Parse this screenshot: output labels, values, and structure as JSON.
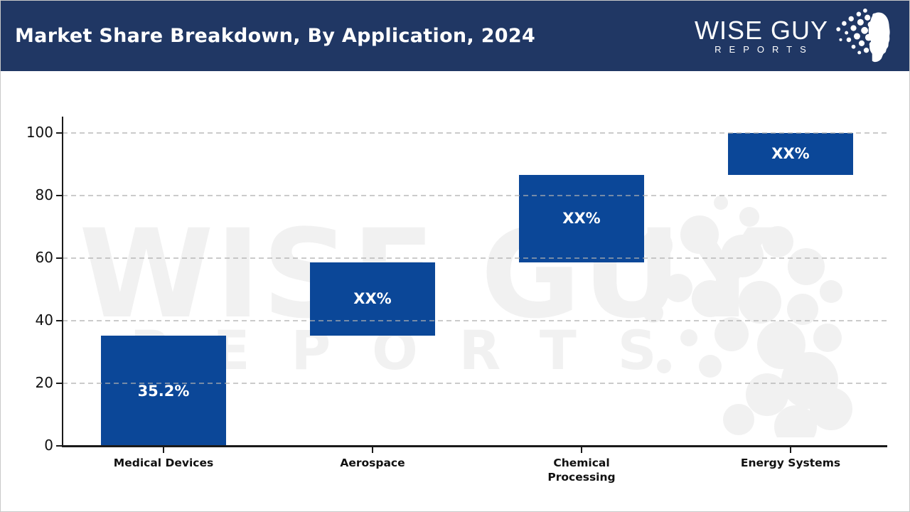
{
  "header": {
    "title": "Market Share Breakdown, By Application, 2024",
    "bg_color": "#203764",
    "logo": {
      "line1": "WISE GUY",
      "line2": "REPORTS"
    }
  },
  "watermark": {
    "line1": "WISE GUY",
    "line2": "REPORTS"
  },
  "chart_data": {
    "type": "bar",
    "subtype": "waterfall-floating-bars",
    "title": "Market Share Breakdown, By Application, 2024",
    "categories": [
      "Medical Devices",
      "Aerospace",
      "Chemical Processing",
      "Energy Systems"
    ],
    "category_lines": [
      [
        "Medical Devices"
      ],
      [
        "Aerospace"
      ],
      [
        "Chemical",
        "Processing"
      ],
      [
        "Energy Systems"
      ]
    ],
    "segments": [
      {
        "category": "Medical Devices",
        "start": 0,
        "end": 35.2,
        "label": "35.2%"
      },
      {
        "category": "Aerospace",
        "start": 35.2,
        "end": 58.7,
        "label": "XX%"
      },
      {
        "category": "Chemical Processing",
        "start": 58.7,
        "end": 86.7,
        "label": "XX%"
      },
      {
        "category": "Energy Systems",
        "start": 86.7,
        "end": 100,
        "label": "XX%"
      }
    ],
    "xlabel": "",
    "ylabel": "",
    "ylim": [
      0,
      100
    ],
    "yticks": [
      0,
      20,
      40,
      60,
      80,
      100
    ],
    "grid": "horizontal-dashed",
    "legend": "none",
    "bar_color": "#0b4798",
    "bar_label_color": "#ffffff",
    "axis_color": "#1a1a1a",
    "gridline_color": "#d9d9d9",
    "watermark_color": "#f1f1f1"
  }
}
